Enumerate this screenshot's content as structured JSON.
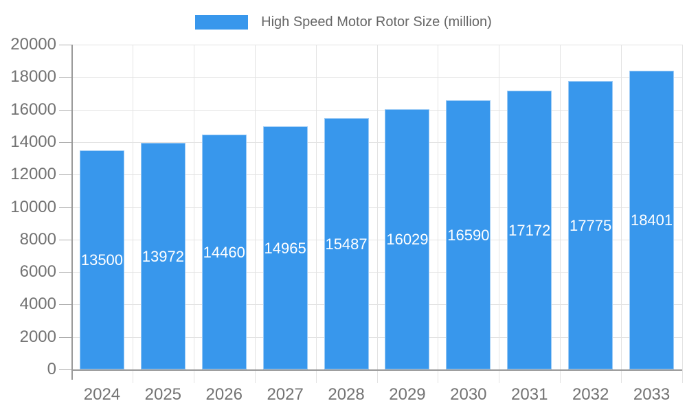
{
  "chart_data": {
    "type": "bar",
    "title": "High Speed Motor Rotor Size (million)",
    "categories": [
      "2024",
      "2025",
      "2026",
      "2027",
      "2028",
      "2029",
      "2030",
      "2031",
      "2032",
      "2033"
    ],
    "series": [
      {
        "name": "High Speed Motor Rotor Size (million)",
        "values": [
          13500,
          13972,
          14460,
          14965,
          15487,
          16029,
          16590,
          17172,
          17775,
          18401
        ]
      }
    ],
    "xlabel": "",
    "ylabel": "",
    "ylim": [
      0,
      20000
    ],
    "ytick_interval": 2000,
    "ytick_labels": [
      "0",
      "2000",
      "4000",
      "6000",
      "8000",
      "10000",
      "12000",
      "14000",
      "16000",
      "18000",
      "20000"
    ],
    "grid": "on",
    "legend_position": "top-center",
    "value_labels": "white, centered inside bars"
  },
  "colors": {
    "bar_fill": "#3897EC",
    "bar_edge": "rgba(255,255,255,0.5)",
    "gridline": "#E3E3E3",
    "axis_line": "#999999",
    "tick": "#AFAFAF",
    "axis_text": "#737373",
    "legend_text": "#666666",
    "value_label_text": "#FFFFFF",
    "background": "#FFFFFF"
  }
}
